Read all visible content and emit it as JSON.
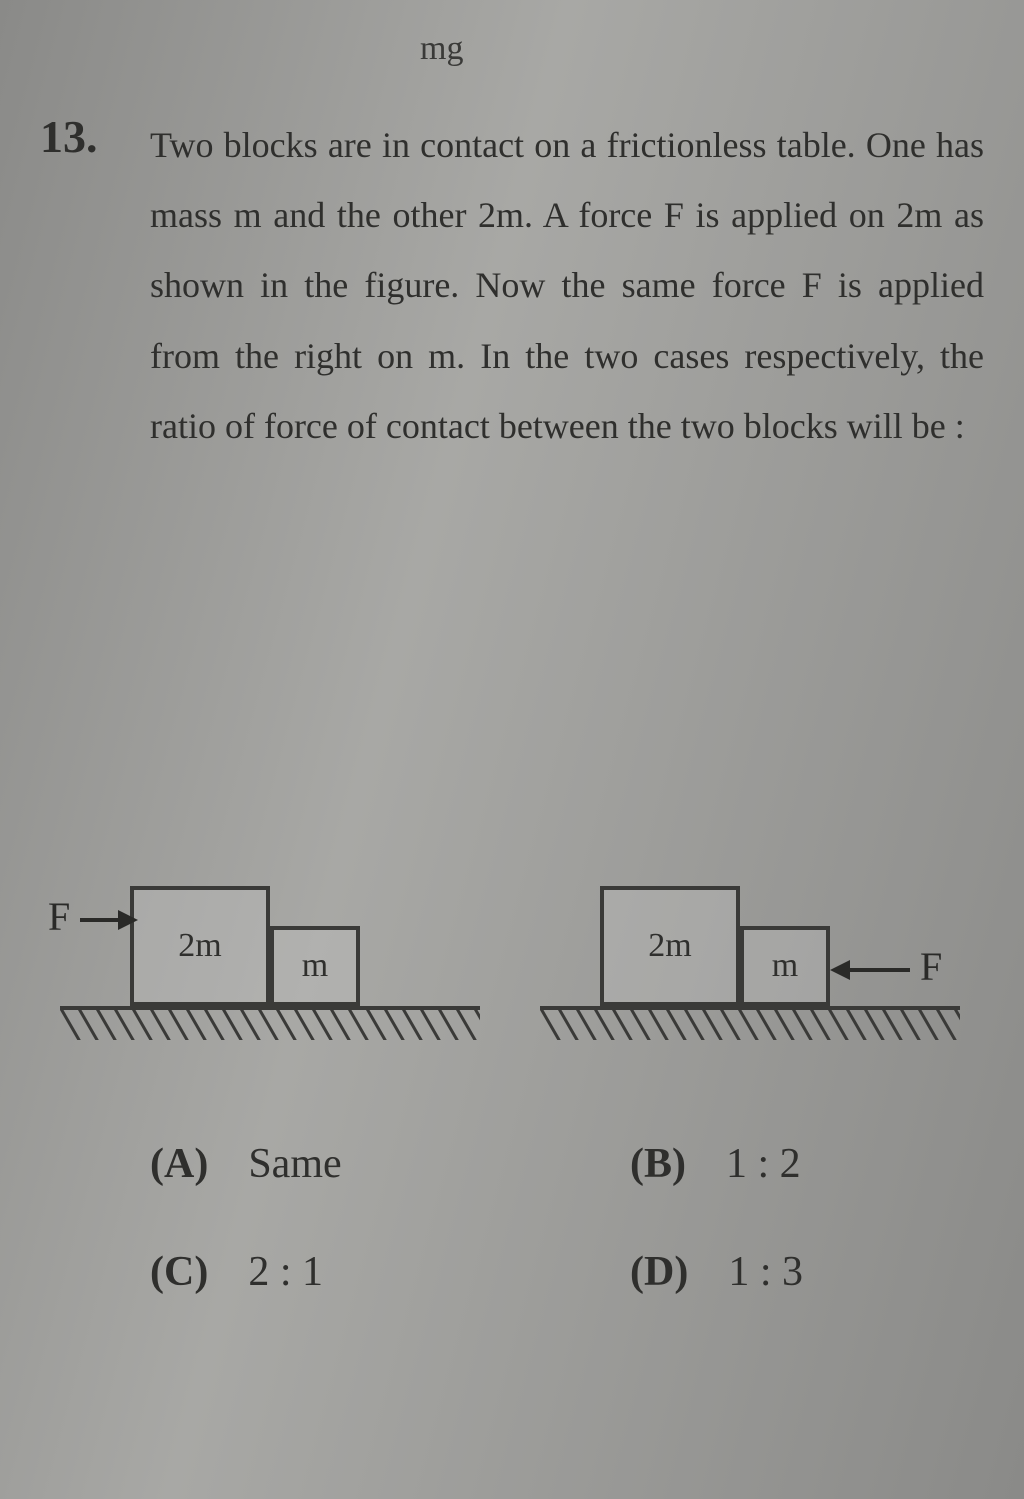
{
  "header_fragment": "mg",
  "question": {
    "number": "13.",
    "text": "Two blocks are in contact on a frictionless table. One has mass m and the other 2m. A force F is applied on 2m as shown in the figure. Now the same force F is applied from the right on m. In the two cases respectively, the ratio of force of contact between the two blocks will be :"
  },
  "figures": {
    "left": {
      "force_label": "F",
      "force_side": "left",
      "big_block_label": "2m",
      "small_block_label": "m"
    },
    "right": {
      "force_label": "F",
      "force_side": "right",
      "big_block_label": "2m",
      "small_block_label": "m"
    },
    "style": {
      "block_border_color": "#3a3a38",
      "line_color": "#2a2a28",
      "text_color": "#2f2f2d",
      "big_block_w": 140,
      "big_block_h": 120,
      "small_block_w": 90,
      "small_block_h": 80,
      "font_size_block": 34,
      "font_size_force": 40,
      "hatch_spacing": 18
    }
  },
  "options": {
    "A": {
      "letter": "(A)",
      "value": "Same"
    },
    "B": {
      "letter": "(B)",
      "value": "1 : 2"
    },
    "C": {
      "letter": "(C)",
      "value": "2 : 1"
    },
    "D": {
      "letter": "(D)",
      "value": "1 : 3"
    }
  },
  "style": {
    "background_gradient": [
      "#8a8a88",
      "#a8a8a5",
      "#8a8a88"
    ],
    "text_color": "#2f2f2d",
    "question_fontsize": 36,
    "number_fontsize": 46,
    "option_fontsize": 42,
    "font_family": "Georgia, Times New Roman, serif"
  }
}
